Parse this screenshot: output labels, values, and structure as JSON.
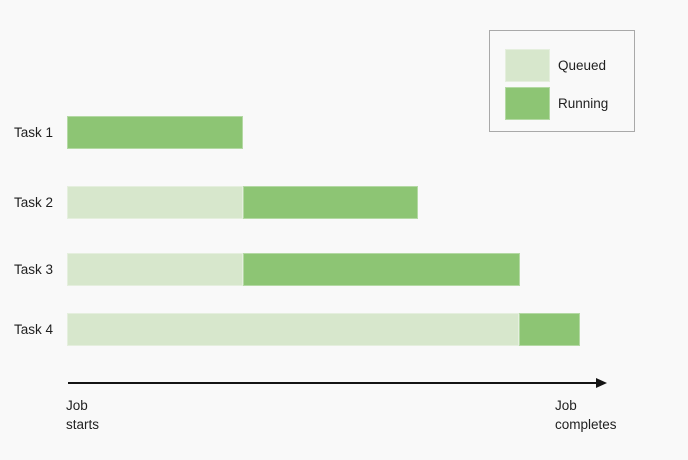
{
  "colors": {
    "background": "#f9f9f9",
    "queued": "#d7e7cc",
    "running": "#8dc574",
    "text": "#1f1f1f",
    "axis": "#141414",
    "legend_border": "#a9a9a9"
  },
  "legend": {
    "position": "top-right",
    "items": [
      {
        "label": "Queued"
      },
      {
        "label": "Running"
      }
    ]
  },
  "axis": {
    "start_label": "Job starts",
    "end_label": "Job completes",
    "start_label_lines": [
      "Job",
      "starts"
    ],
    "end_label_lines": [
      "Job",
      "completes"
    ]
  },
  "chart_data": {
    "type": "bar",
    "variant": "horizontal-stacked-gantt",
    "title": "",
    "categories": [
      "Task 1",
      "Task 2",
      "Task 3",
      "Task 4"
    ],
    "series": [
      {
        "name": "Queued",
        "color": "#d7e7cc",
        "values": [
          0,
          176,
          176,
          452
        ]
      },
      {
        "name": "Running",
        "color": "#8dc574",
        "values": [
          176,
          175,
          277,
          61
        ]
      }
    ],
    "units": "relative duration (pixels along a 539px unlabeled time axis)",
    "x_axis": {
      "start_label": "Job starts",
      "end_label": "Job completes",
      "arrow": true,
      "ticks": false
    },
    "grid": false,
    "legend_position": "top-right"
  }
}
